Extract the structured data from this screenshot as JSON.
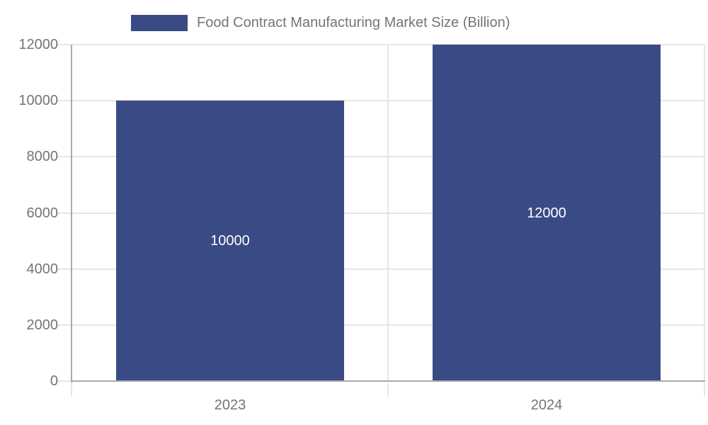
{
  "legend": {
    "label": "Food Contract Manufacturing Market Size (Billion)"
  },
  "colors": {
    "bar": "#3a4a85",
    "grid": "#e6e6e6",
    "axis_spine": "#a9a9a9",
    "tick_text": "#757575",
    "bar_label_text": "#ffffff",
    "background": "#ffffff"
  },
  "chart_data": {
    "type": "bar",
    "categories": [
      "2023",
      "2024"
    ],
    "values": [
      10000,
      12000
    ],
    "bar_labels": [
      "10000",
      "12000"
    ],
    "title": "Food Contract Manufacturing Market Size (Billion)",
    "xlabel": "",
    "ylabel": "",
    "ylim": [
      0,
      12000
    ],
    "yticks": [
      0,
      2000,
      4000,
      6000,
      8000,
      10000,
      12000
    ],
    "grid": true,
    "legend_position": "top"
  }
}
